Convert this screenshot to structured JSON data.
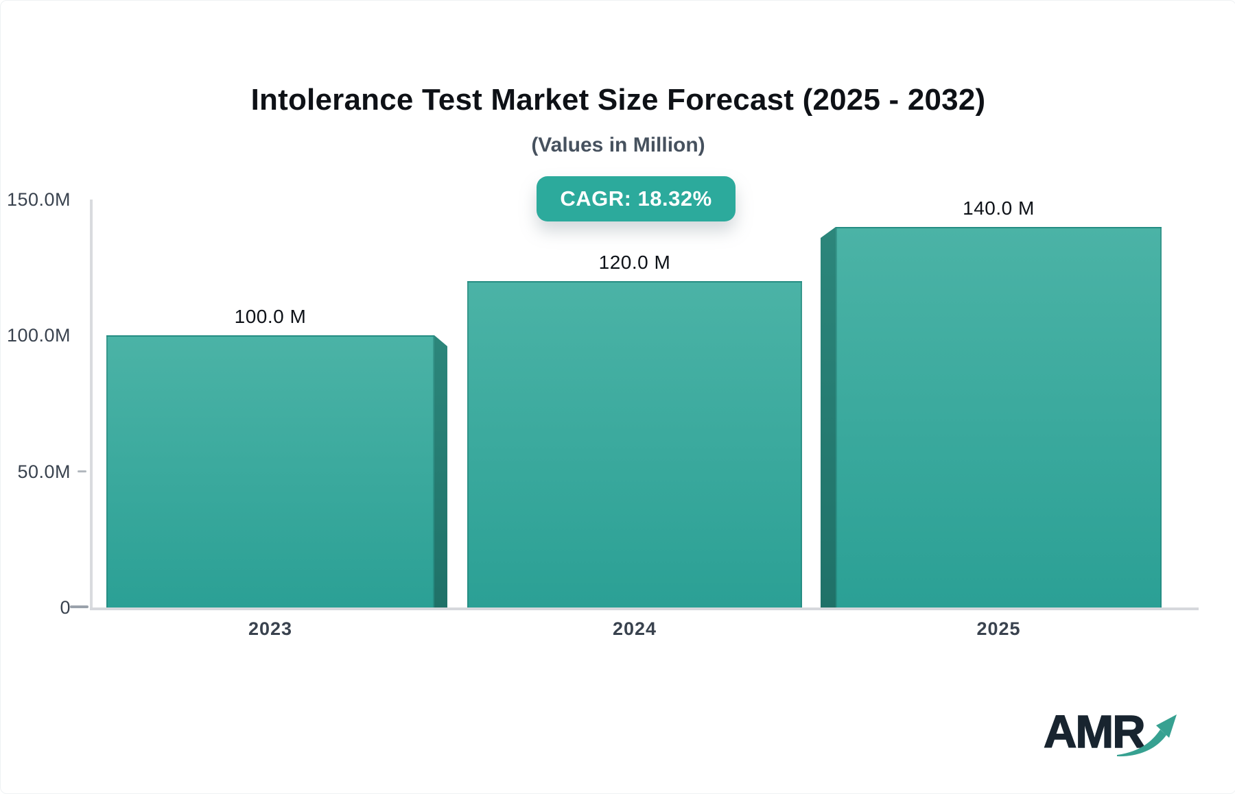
{
  "header": {
    "title": "Intolerance Test Market Size Forecast (2025 - 2032)",
    "subtitle": "(Values in Million)"
  },
  "badge": {
    "label": "CAGR: 18.32%",
    "bg": "#2caa9c",
    "text_color": "#ffffff"
  },
  "chart_data": {
    "type": "bar",
    "title": "Intolerance Test Market Size Forecast (2025 - 2032)",
    "subtitle": "(Values in Million)",
    "unit": "Million",
    "cagr_percent": 18.32,
    "categories": [
      "2023",
      "2024",
      "2025"
    ],
    "values": [
      100,
      120,
      140
    ],
    "bar_labels": [
      "100.0 M",
      "120.0 M",
      "140.0 M"
    ],
    "y_ticks": [
      {
        "label": "150.0M",
        "value": 150
      },
      {
        "label": "100.0M",
        "value": 100
      },
      {
        "label": "50.0M",
        "value": 50
      },
      {
        "label": "0",
        "value": 0
      }
    ],
    "ylim": [
      0,
      150
    ],
    "grid": false,
    "legend": false,
    "bar_color_top": "#4bb3a6",
    "bar_color_bottom": "#2ba095",
    "bar_side_color": "#27796f",
    "axis_color": "#d6d8dc",
    "label_color": "#39424e"
  },
  "logo": {
    "text": "AMR",
    "color": "#18242f",
    "arrow_color": "#37a191"
  }
}
